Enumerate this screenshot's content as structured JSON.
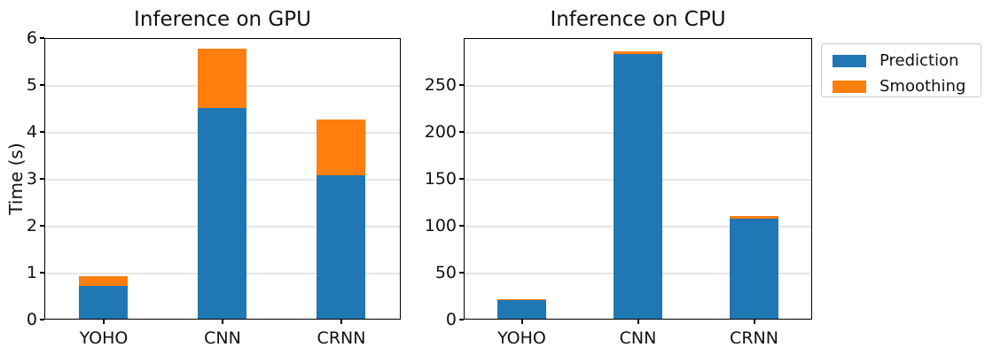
{
  "figure": {
    "background": "#ffffff"
  },
  "colors": {
    "prediction": "#1f77b4",
    "smoothing": "#ff7f0e",
    "grid": "#e6e6e6",
    "spine": "#000000",
    "text": "#111111",
    "legend_border": "#cccccc"
  },
  "legend": {
    "position": "outside upper right",
    "items": [
      {
        "label": "Prediction",
        "color": "#1f77b4"
      },
      {
        "label": "Smoothing",
        "color": "#ff7f0e"
      }
    ]
  },
  "chart_data": [
    {
      "type": "bar",
      "stacked": true,
      "title": "Inference on GPU",
      "xlabel": "",
      "ylabel": "Time (s)",
      "categories": [
        "YOHO",
        "CNN",
        "CRNN"
      ],
      "series": [
        {
          "name": "Prediction",
          "values": [
            0.7,
            4.5,
            3.05
          ]
        },
        {
          "name": "Smoothing",
          "values": [
            0.2,
            1.25,
            1.2
          ]
        }
      ],
      "stack_totals": [
        0.9,
        5.75,
        4.25
      ],
      "ylim": [
        0,
        6
      ],
      "yticks": [
        0,
        1,
        2,
        3,
        4,
        5,
        6
      ],
      "grid": true
    },
    {
      "type": "bar",
      "stacked": true,
      "title": "Inference on CPU",
      "xlabel": "",
      "ylabel": "",
      "categories": [
        "YOHO",
        "CNN",
        "CRNN"
      ],
      "series": [
        {
          "name": "Prediction",
          "values": [
            20,
            282,
            107
          ]
        },
        {
          "name": "Smoothing",
          "values": [
            0.5,
            2.5,
            2.5
          ]
        }
      ],
      "stack_totals": [
        20.5,
        284.5,
        109.5
      ],
      "ylim": [
        0,
        300
      ],
      "yticks": [
        0,
        50,
        100,
        150,
        200,
        250
      ],
      "grid": true
    }
  ]
}
